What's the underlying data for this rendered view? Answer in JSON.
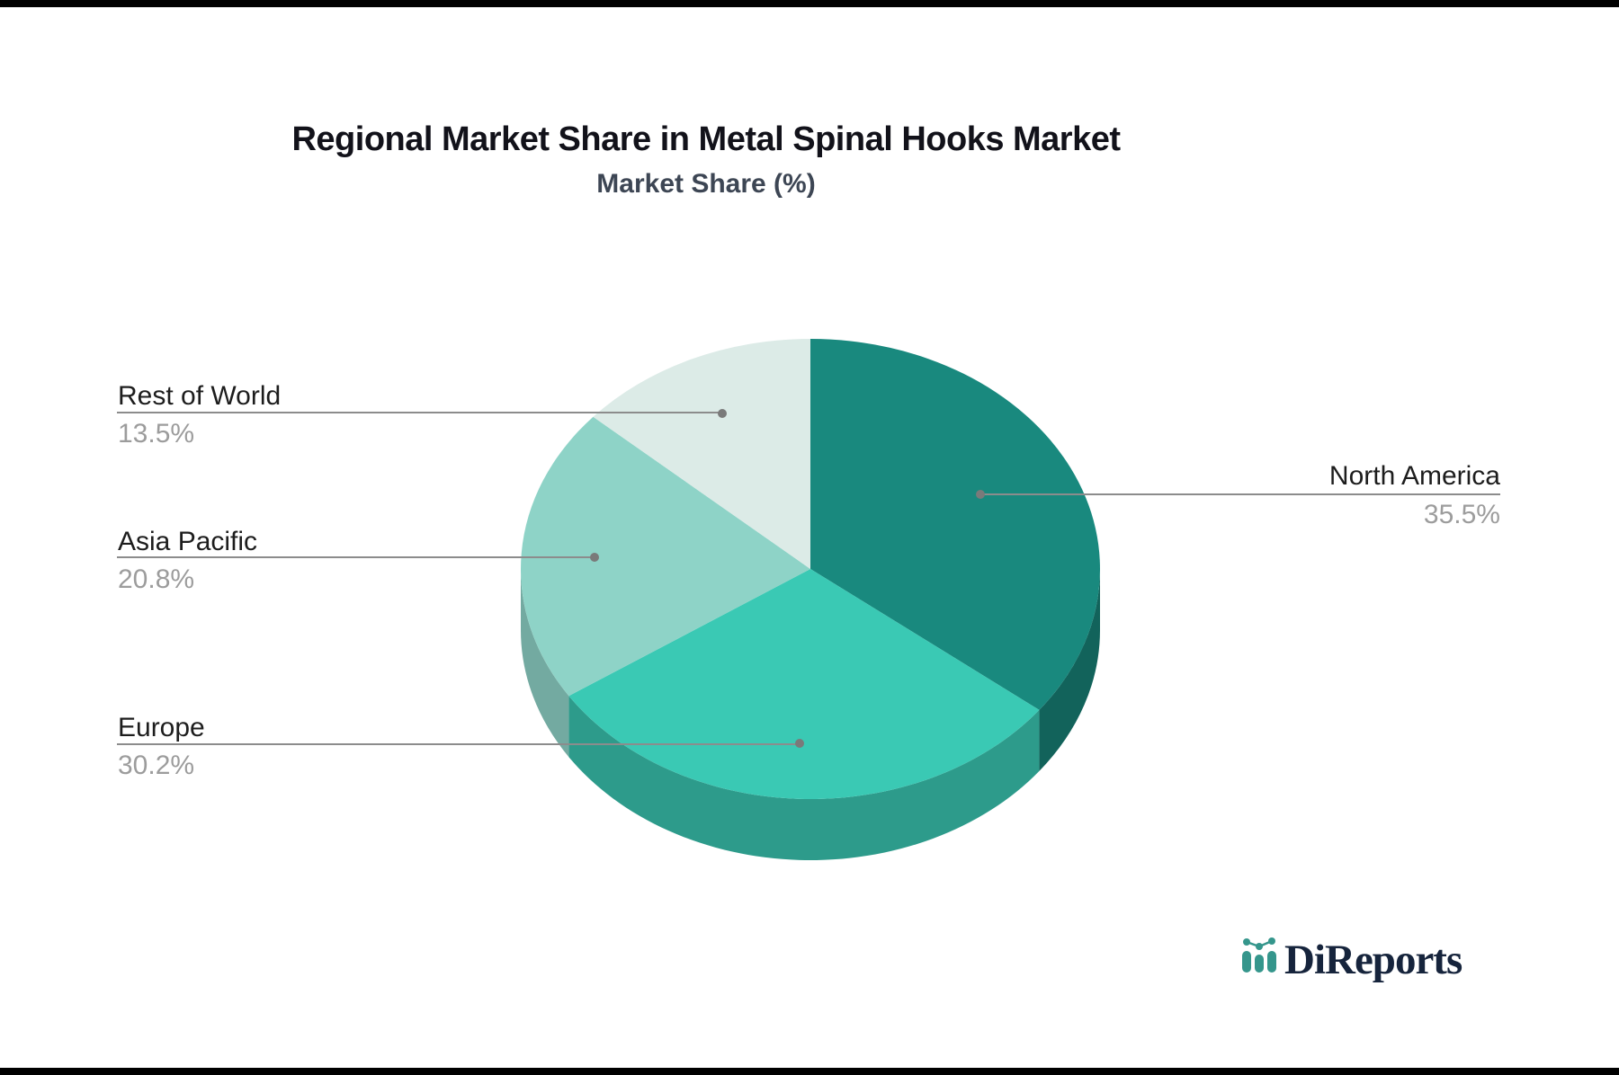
{
  "page": {
    "background": "#ffffff",
    "frame_bar_color": "#000000"
  },
  "header": {
    "title": "Regional Market Share in Metal Spinal Hooks Market",
    "subtitle": "Market Share (%)"
  },
  "chart_data": {
    "type": "pie",
    "style_3d": true,
    "title": "Regional Market Share in Metal Spinal Hooks Market",
    "subtitle": "Market Share (%)",
    "unit": "%",
    "start_angle": "12-oclock",
    "direction": "clockwise",
    "categories": [
      "North America",
      "Europe",
      "Asia Pacific",
      "Rest of World"
    ],
    "values": [
      35.5,
      30.2,
      20.8,
      13.5
    ],
    "labels": [
      "35.5%",
      "30.2%",
      "20.8%",
      "13.5%"
    ],
    "colors": [
      "#19897e",
      "#3ac9b4",
      "#8ed3c7",
      "#dcebe7"
    ],
    "side_colors": [
      "#12635b",
      "#2d9b8b",
      "#73aaa1",
      "#b7cfc9"
    ],
    "legend_position": "callouts",
    "callout_line_color": "#8c8c8c",
    "callout_dot_color": "#7a7a7a"
  },
  "callouts": [
    {
      "name": "North America",
      "value": "35.5%"
    },
    {
      "name": "Europe",
      "value": "30.2%"
    },
    {
      "name": "Asia Pacific",
      "value": "20.8%"
    },
    {
      "name": "Rest of World",
      "value": "13.5%"
    }
  ],
  "logo": {
    "text": "DiReports",
    "icon": "bar-line-chart-icon",
    "icon_color": "#35968c",
    "text_color": "#16243c"
  }
}
